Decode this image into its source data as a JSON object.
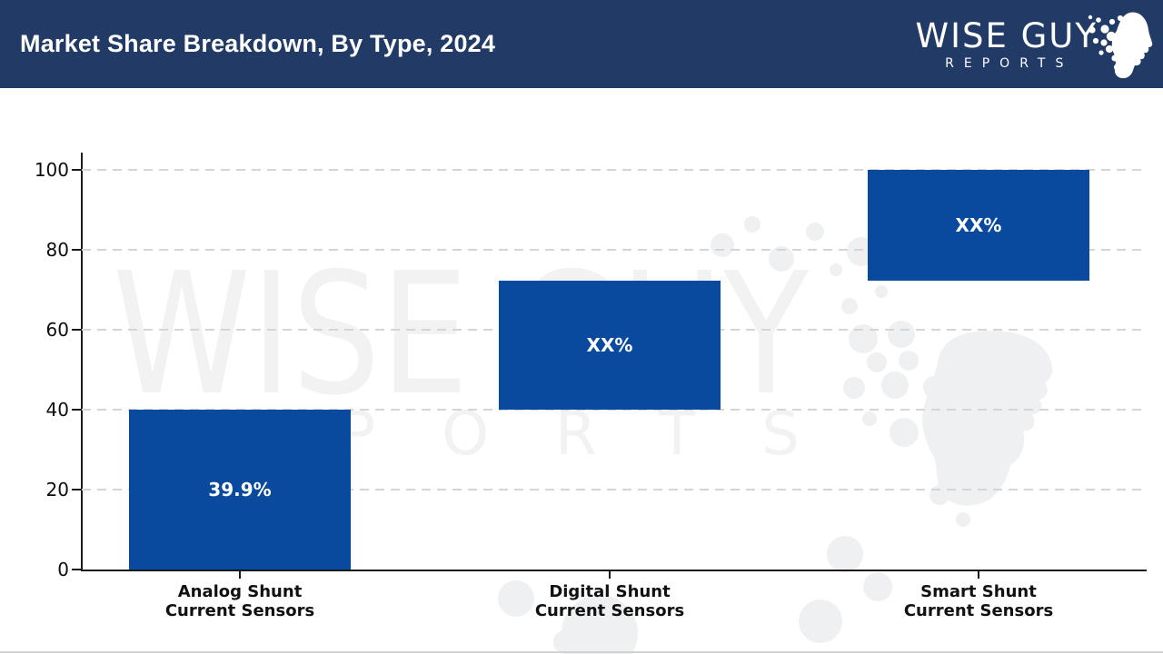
{
  "header": {
    "title": "Market Share Breakdown, By Type, 2024",
    "background_color": "#213a66",
    "logo": {
      "line1": "WISE GUY",
      "line2": "REPORTS"
    }
  },
  "watermark": {
    "line1": "WISE GUY",
    "line2": "REPORTS"
  },
  "chart_data": {
    "type": "bar",
    "variant": "stacked-waterfall",
    "title": "Market Share Breakdown, By Type, 2024",
    "categories": [
      "Analog Shunt\nCurrent Sensors",
      "Digital Shunt\nCurrent Sensors",
      "Smart Shunt\nCurrent Sensors"
    ],
    "segments": [
      {
        "category": "Analog Shunt Current Sensors",
        "start": 0,
        "end": 39.9,
        "value": 39.9,
        "label": "39.9%"
      },
      {
        "category": "Digital Shunt Current Sensors",
        "start": 39.9,
        "end": 72.2,
        "value": 32.3,
        "label": "XX%"
      },
      {
        "category": "Smart Shunt Current Sensors",
        "start": 72.2,
        "end": 100,
        "value": 27.8,
        "label": "XX%"
      }
    ],
    "yticks": [
      0,
      20,
      40,
      60,
      80,
      100
    ],
    "ylim": [
      0,
      104
    ],
    "grid": "dashed-horizontal",
    "legend": false,
    "bar_color": "#0a4a9e",
    "bar_label_color": "#ffffff",
    "axis_color": "#1a1a1a",
    "gridline_color": "#d5d5d5"
  }
}
